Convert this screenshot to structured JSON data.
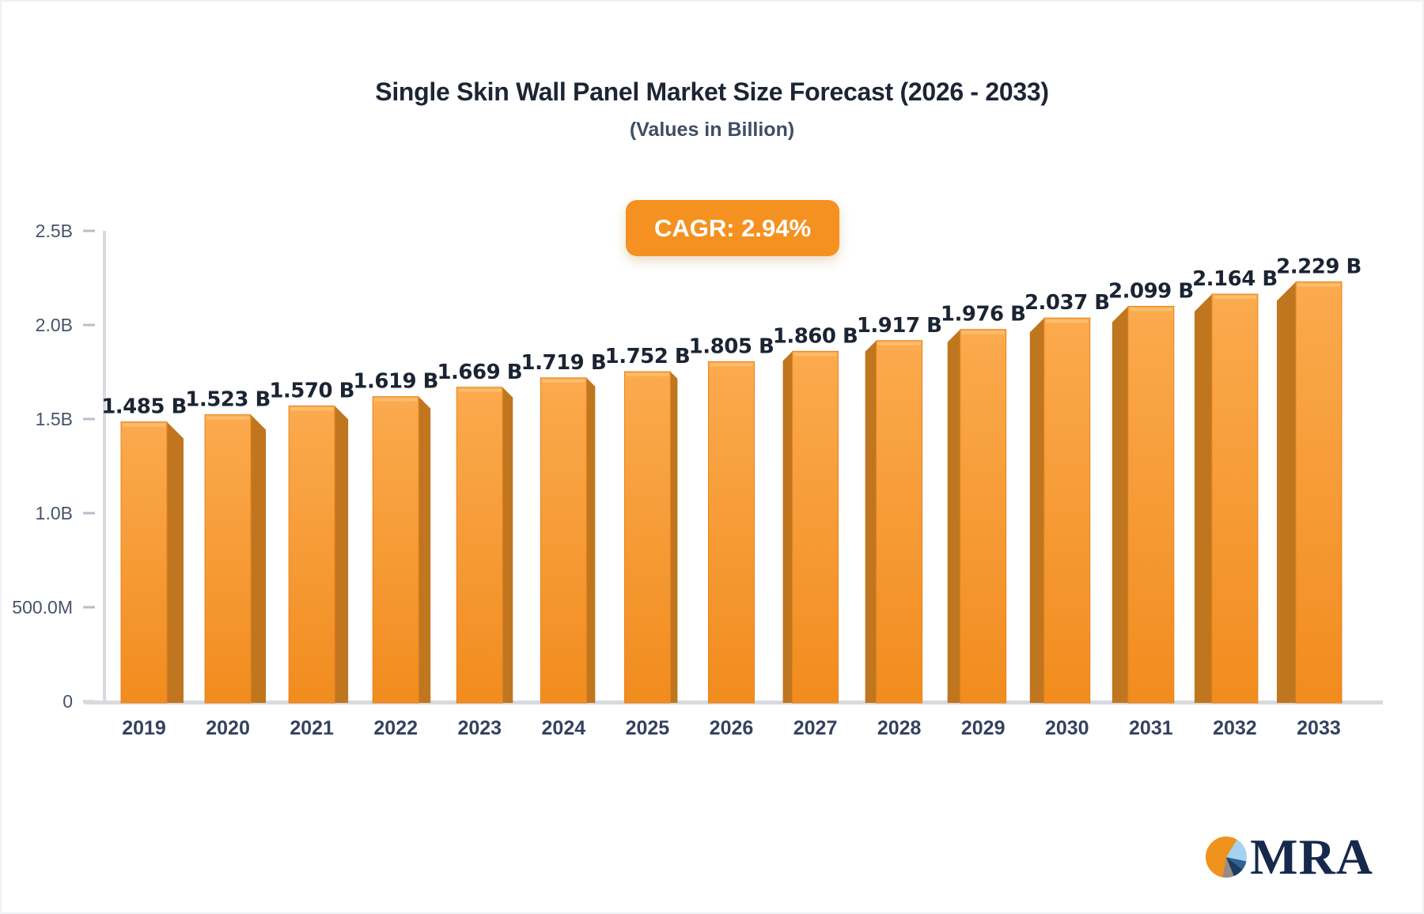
{
  "chart_data": {
    "type": "bar",
    "title": "Single Skin Wall Panel Market Size Forecast (2026 - 2033)",
    "subtitle": "(Values in Billion)",
    "cagr_label": "CAGR: 2.94%",
    "categories": [
      "2019",
      "2020",
      "2021",
      "2022",
      "2023",
      "2024",
      "2025",
      "2026",
      "2027",
      "2028",
      "2029",
      "2030",
      "2031",
      "2032",
      "2033"
    ],
    "values": [
      1.485,
      1.523,
      1.57,
      1.619,
      1.669,
      1.719,
      1.752,
      1.805,
      1.86,
      1.917,
      1.976,
      2.037,
      2.099,
      2.164,
      2.229
    ],
    "labels": [
      "1.485 B",
      "1.523 B",
      "1.570 B",
      "1.619 B",
      "1.669 B",
      "1.719 B",
      "1.752 B",
      "1.805 B",
      "1.860 B",
      "1.917 B",
      "1.976 B",
      "2.037 B",
      "2.099 B",
      "2.164 B",
      "2.229 B"
    ],
    "xlabel": "",
    "ylabel": "",
    "ylim": [
      0,
      2.5
    ],
    "y_tick_values": [
      0,
      0.5,
      1.0,
      1.5,
      2.0,
      2.5
    ],
    "y_tick_labels": [
      "0",
      "500.0M",
      "1.0B",
      "1.5B",
      "2.0B",
      "2.5B"
    ],
    "grid": false,
    "legend_position": "none",
    "style": "3d-column-central-perspective",
    "colors": {
      "bar_front_top": "#fbaa4e",
      "bar_front_bottom": "#f18c1e",
      "bar_edge": "#e8831f",
      "bar_side": "#c0761f",
      "bar_top_highlight": "#fdc173",
      "axis_line": "#d7dade",
      "tick_mark": "#b9bfc9",
      "y_tick_text": "#47536b",
      "x_tick_text": "#33425e",
      "value_label_text": "#1b2433",
      "badge": "#f49120",
      "badge_text": "#ffffff",
      "title_text": "#1d2534",
      "subtitle_text": "#3f4d66"
    }
  },
  "logo": {
    "text": "MRA",
    "icon": "pie-chart-icon"
  }
}
